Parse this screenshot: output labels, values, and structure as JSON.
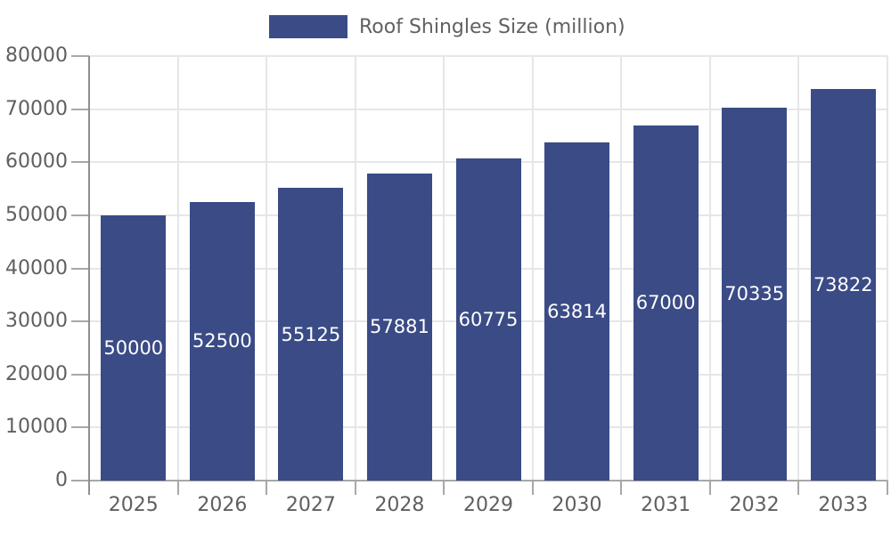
{
  "legend": {
    "label": "Roof Shingles Size (million)"
  },
  "colors": {
    "bar": "#3A4B86",
    "axis_text": "#5f5f5f",
    "value_text": "#ffffff",
    "grid_line": "#e6e6e6",
    "tick_line": "#a8a8a8",
    "y_axis_line": "#8f8f8f"
  },
  "chart_data": {
    "type": "bar",
    "title": "",
    "xlabel": "",
    "ylabel": "",
    "categories": [
      "2025",
      "2026",
      "2027",
      "2028",
      "2029",
      "2030",
      "2031",
      "2032",
      "2033"
    ],
    "series": [
      {
        "name": "Roof Shingles Size (million)",
        "values": [
          50000,
          52500,
          55125,
          57881,
          60775,
          63814,
          67000,
          70335,
          73822
        ]
      }
    ],
    "ylim": [
      0,
      80000
    ],
    "ytick_step": 10000,
    "ytick_labels": [
      "0",
      "10000",
      "20000",
      "30000",
      "40000",
      "50000",
      "60000",
      "70000",
      "80000"
    ],
    "grid": true,
    "legend_position": "top-center",
    "value_labels": "inside-center"
  }
}
